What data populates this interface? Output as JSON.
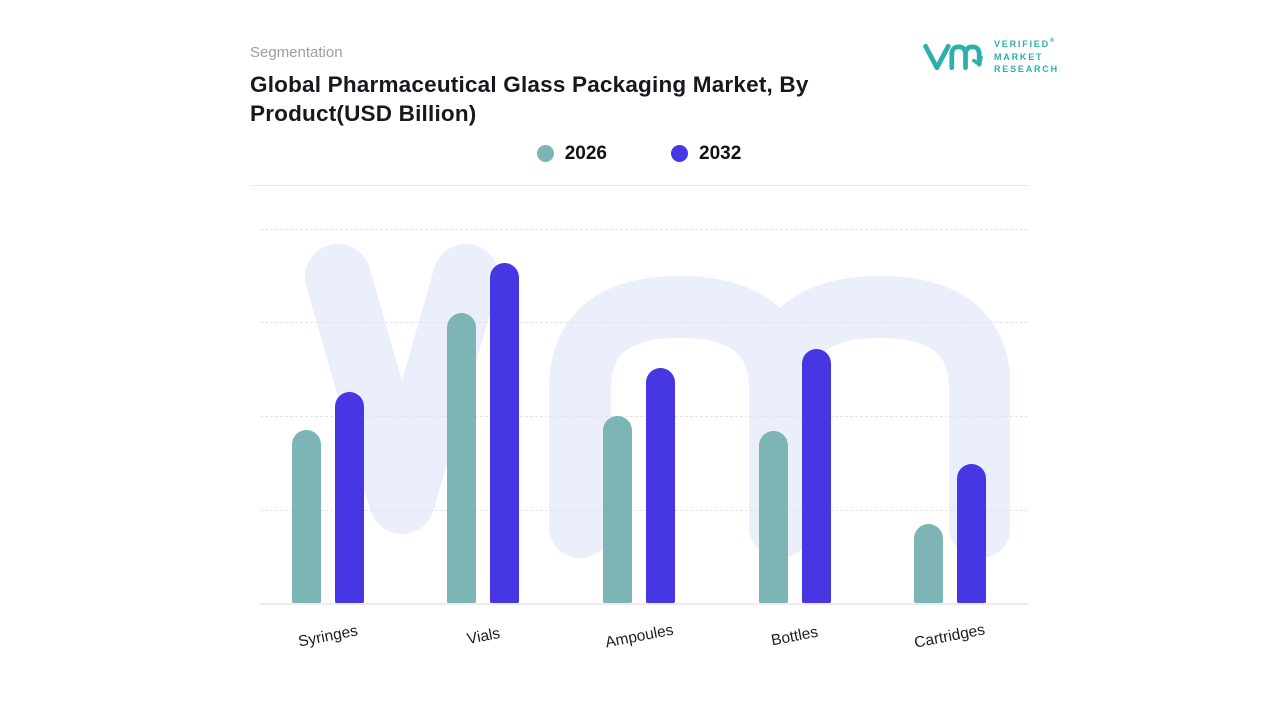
{
  "header": {
    "eyebrow": "Segmentation",
    "title_line1": "Global Pharmaceutical Glass Packaging Market, By",
    "title_line2": "Product(USD Billion)"
  },
  "logo": {
    "line1": "VERIFIED",
    "line2": "MARKET",
    "line3": "RESEARCH",
    "registered": "®",
    "color": "#2bb0ac"
  },
  "colors": {
    "series_2026": "#7db4b5",
    "series_2032": "#4636e3",
    "watermark": "#ebeefb",
    "gridline": "#e4e4e8",
    "eyebrow_text": "#9b9ea3",
    "title_text": "#17181d"
  },
  "chart_data": {
    "type": "bar",
    "title": "Global Pharmaceutical Glass Packaging Market, By Product(USD Billion)",
    "subtitle": "Segmentation",
    "categories": [
      "Syringes",
      "Vials",
      "Ampoules",
      "Bottles",
      "Cartridges"
    ],
    "series": [
      {
        "name": "2026",
        "color": "#7db4b5",
        "values": [
          46.4,
          77.6,
          49.9,
          46.1,
          21.3
        ]
      },
      {
        "name": "2032",
        "color": "#4636e3",
        "values": [
          56.5,
          90.7,
          62.7,
          68.0,
          37.1
        ]
      }
    ],
    "value_unit": "relative height, % of plot area (no numeric axis labels shown in chart)",
    "xlabel": "",
    "ylabel": "",
    "ylim": [
      0,
      100
    ],
    "grid": "dashed-horizontal",
    "legend_position": "top-center",
    "bar_style": "rounded-top"
  }
}
